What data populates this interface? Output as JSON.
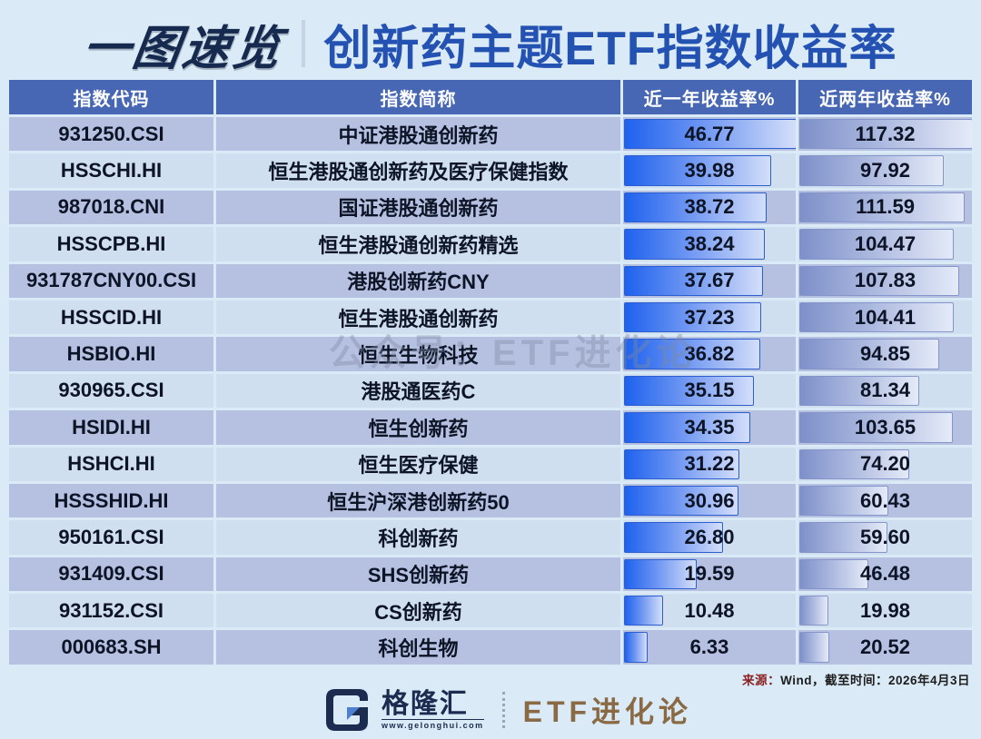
{
  "page": {
    "title_badge": "一图速览",
    "title_main": "创新药主题ETF指数收益率",
    "watermark": "公众号：ETF进化论"
  },
  "table": {
    "headers": [
      "指数代码",
      "指数简称",
      "近一年收益率%",
      "近两年收益率%"
    ],
    "rows": [
      {
        "code": "931250.CSI",
        "name": "中证港股通创新药",
        "y1": "46.77",
        "y2": "117.32"
      },
      {
        "code": "HSSCHI.HI",
        "name": "恒生港股通创新药及医疗保健指数",
        "y1": "39.98",
        "y2": "97.92"
      },
      {
        "code": "987018.CNI",
        "name": "国证港股通创新药",
        "y1": "38.72",
        "y2": "111.59"
      },
      {
        "code": "HSSCPB.HI",
        "name": "恒生港股通创新药精选",
        "y1": "38.24",
        "y2": "104.47"
      },
      {
        "code": "931787CNY00.CSI",
        "name": "港股创新药CNY",
        "y1": "37.67",
        "y2": "107.83"
      },
      {
        "code": "HSSCID.HI",
        "name": "恒生港股通创新药",
        "y1": "37.23",
        "y2": "104.41"
      },
      {
        "code": "HSBIO.HI",
        "name": "恒生生物科技",
        "y1": "36.82",
        "y2": "94.85"
      },
      {
        "code": "930965.CSI",
        "name": "港股通医药C",
        "y1": "35.15",
        "y2": "81.34"
      },
      {
        "code": "HSIDI.HI",
        "name": "恒生创新药",
        "y1": "34.35",
        "y2": "103.65"
      },
      {
        "code": "HSHCI.HI",
        "name": "恒生医疗保健",
        "y1": "31.22",
        "y2": "74.20"
      },
      {
        "code": "HSSSHID.HI",
        "name": "恒生沪深港创新药50",
        "y1": "30.96",
        "y2": "60.43"
      },
      {
        "code": "950161.CSI",
        "name": "科创新药",
        "y1": "26.80",
        "y2": "59.60"
      },
      {
        "code": "931409.CSI",
        "name": "SHS创新药",
        "y1": "19.59",
        "y2": "46.48"
      },
      {
        "code": "931152.CSI",
        "name": "CS创新药",
        "y1": "10.48",
        "y2": "19.98"
      },
      {
        "code": "000683.SH",
        "name": "科创生物",
        "y1": "6.33",
        "y2": "20.52"
      }
    ]
  },
  "chart_data": {
    "type": "table",
    "title": "创新药主题ETF指数收益率",
    "columns": [
      "指数代码",
      "指数简称",
      "近一年收益率%",
      "近两年收益率%"
    ],
    "categories": [
      "931250.CSI",
      "HSSCHI.HI",
      "987018.CNI",
      "HSSCPB.HI",
      "931787CNY00.CSI",
      "HSSCID.HI",
      "HSBIO.HI",
      "930965.CSI",
      "HSIDI.HI",
      "HSHCI.HI",
      "HSSSHID.HI",
      "950161.CSI",
      "931409.CSI",
      "931152.CSI",
      "000683.SH"
    ],
    "category_names": [
      "中证港股通创新药",
      "恒生港股通创新药及医疗保健指数",
      "国证港股通创新药",
      "恒生港股通创新药精选",
      "港股创新药CNY",
      "恒生港股通创新药",
      "恒生生物科技",
      "港股通医药C",
      "恒生创新药",
      "恒生医疗保健",
      "恒生沪深港创新药50",
      "科创新药",
      "SHS创新药",
      "CS创新药",
      "科创生物"
    ],
    "series": [
      {
        "name": "近一年收益率%",
        "values": [
          46.77,
          39.98,
          38.72,
          38.24,
          37.67,
          37.23,
          36.82,
          35.15,
          34.35,
          31.22,
          30.96,
          26.8,
          19.59,
          10.48,
          6.33
        ]
      },
      {
        "name": "近两年收益率%",
        "values": [
          117.32,
          97.92,
          111.59,
          104.47,
          107.83,
          104.41,
          94.85,
          81.34,
          103.65,
          74.2,
          60.43,
          59.6,
          46.48,
          19.98,
          20.52
        ]
      }
    ],
    "layout": "in-cell horizontal bars, each value column scaled to its own maximum, rows sorted by 近一年收益率% descending"
  },
  "footer": {
    "source_label": "来源：",
    "source_text": "Wind，截至时间：2026年4月3日",
    "brand_name": "格隆汇",
    "brand_url": "www.gelonghui.com",
    "brand_sub": "ETF进化论"
  },
  "colors": {
    "page_bg": "#daeaf6",
    "title_navy": "#16294e",
    "title_blue": "#2452b2",
    "header_bg": "#4767b5",
    "row_odd": "#b6c1e1",
    "row_even": "#cfdff0",
    "bar_1y_start": "#1e62ee",
    "bar_1y_end": "#d3def9",
    "bar_2y_start": "#7e90ca",
    "bar_2y_end": "#e4eaf8",
    "source_red": "#8b2020",
    "brand_bronze": "#8a6a45",
    "brand_navy": "#1c2b50"
  }
}
